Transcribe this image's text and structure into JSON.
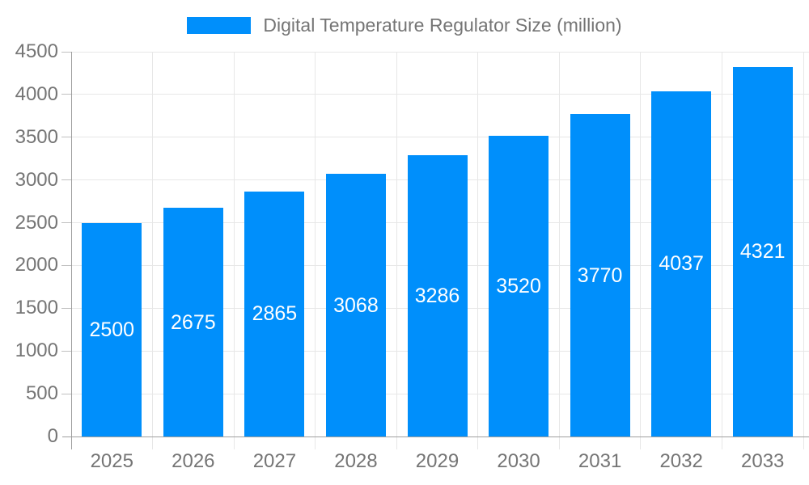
{
  "legend": {
    "label": "Digital Temperature Regulator Size (million)"
  },
  "chart_data": {
    "type": "bar",
    "title": "Digital Temperature Regulator Size (million)",
    "series_name": "Digital Temperature Regulator Size (million)",
    "categories": [
      "2025",
      "2026",
      "2027",
      "2028",
      "2029",
      "2030",
      "2031",
      "2032",
      "2033"
    ],
    "values": [
      2500,
      2675,
      2865,
      3068,
      3286,
      3520,
      3770,
      4037,
      4321
    ],
    "value_labels": [
      "2500",
      "2675",
      "2865",
      "3068",
      "3286",
      "3520",
      "3770",
      "4037",
      "4321"
    ],
    "xlabel": "",
    "ylabel": "",
    "ylim": [
      0,
      4500
    ],
    "y_tick_step": 500,
    "y_tick_labels": [
      "0",
      "500",
      "1000",
      "1500",
      "2000",
      "2500",
      "3000",
      "3500",
      "4000",
      "4500"
    ],
    "grid": true,
    "legend_position": "top",
    "colors": {
      "bar": "#008FFB",
      "value_label": "#ffffff",
      "axis_text": "#757575",
      "title_text": "#757575",
      "gridline": "#e7e7e7",
      "axis_line": "#9e9e9e",
      "y_tick": "#c0c0c0",
      "background": "#ffffff"
    }
  }
}
